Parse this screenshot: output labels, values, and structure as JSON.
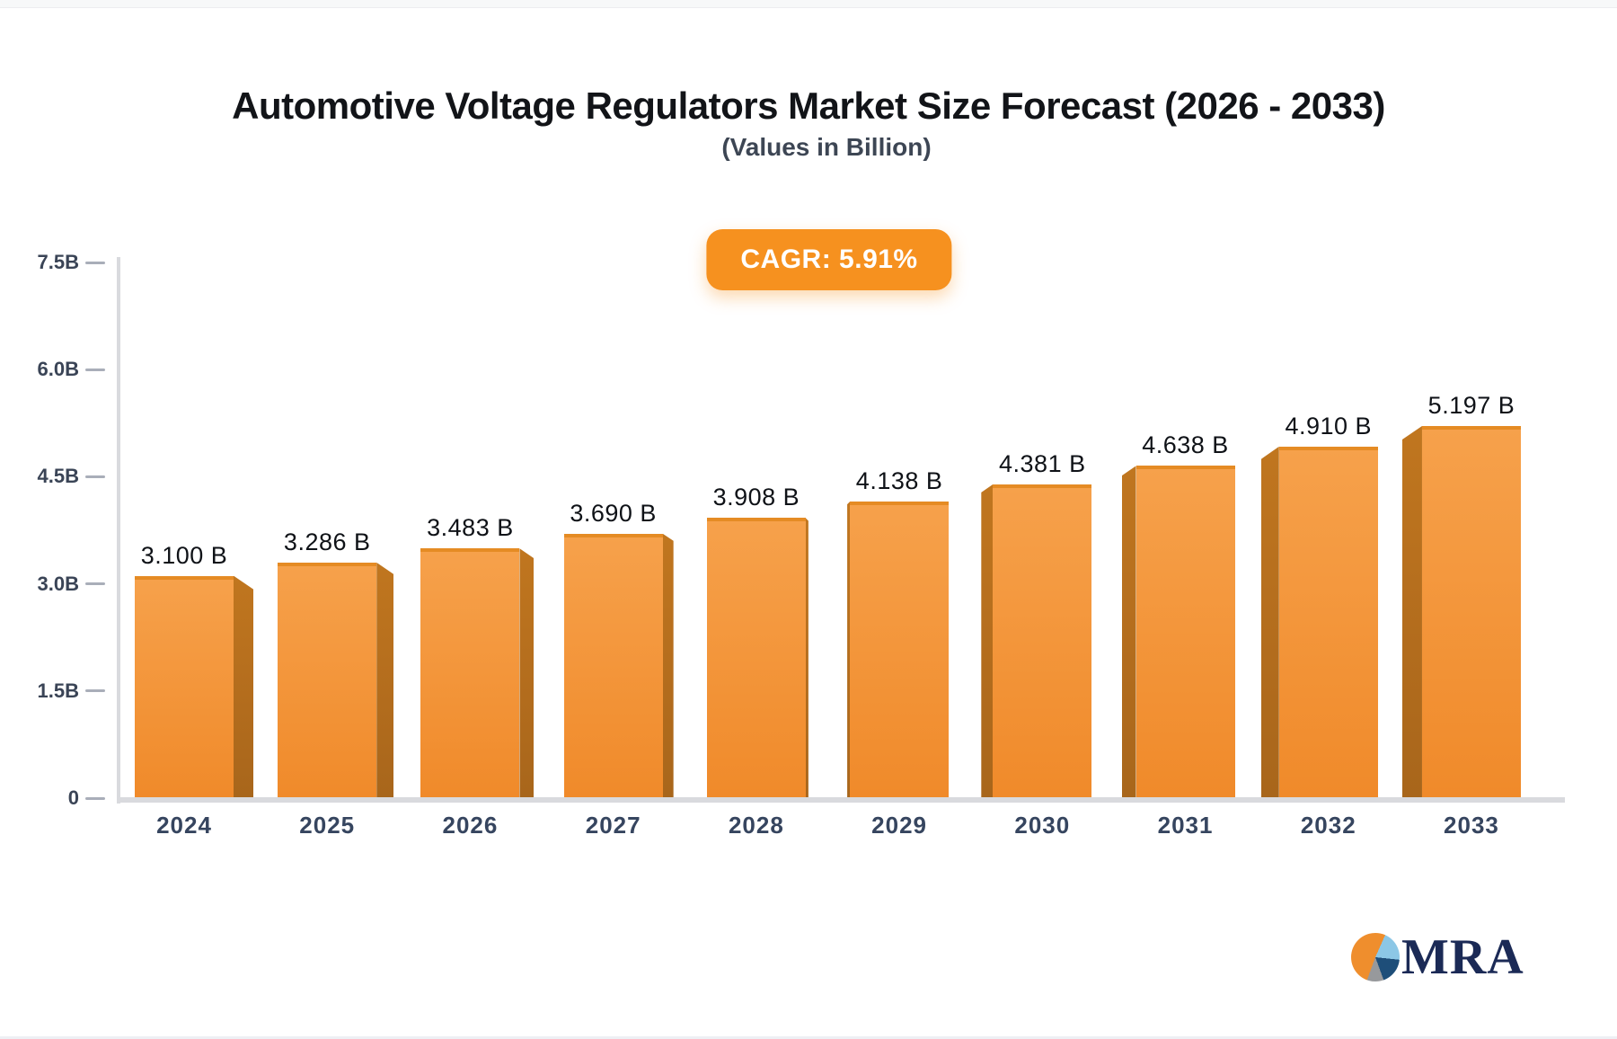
{
  "header": {
    "title": "Automotive Voltage Regulators Market Size Forecast (2026 - 2033)",
    "subtitle": "(Values in Billion)",
    "cagr_label": "CAGR: 5.91%",
    "cagr_badge_color": "#f6911f"
  },
  "logo": {
    "text": "MRA"
  },
  "chart_data": {
    "type": "bar",
    "title": "Automotive Voltage Regulators Market Size Forecast (2026 - 2033)",
    "subtitle": "(Values in Billion)",
    "annotation": "CAGR: 5.91%",
    "categories": [
      "2024",
      "2025",
      "2026",
      "2027",
      "2028",
      "2029",
      "2030",
      "2031",
      "2032",
      "2033"
    ],
    "values": [
      3.1,
      3.286,
      3.483,
      3.69,
      3.908,
      4.138,
      4.381,
      4.638,
      4.91,
      5.197
    ],
    "value_labels": [
      "3.100 B",
      "3.286 B",
      "3.483 B",
      "3.690 B",
      "3.908 B",
      "4.138 B",
      "4.381 B",
      "4.638 B",
      "4.910 B",
      "5.197 B"
    ],
    "xlabel": "",
    "ylabel": "",
    "ylim": [
      0,
      7.5
    ],
    "yticks": [
      0,
      1.5,
      3.0,
      4.5,
      6.0,
      7.5
    ],
    "ytick_labels": [
      "0",
      "1.5B",
      "3.0B",
      "4.5B",
      "6.0B",
      "7.5B"
    ],
    "grid": false,
    "legend_position": "none",
    "bar_face_color_top": "#f6a14b",
    "bar_face_color_bottom": "#f08a2a",
    "bar_side_color": "#b26c1d",
    "bar_top_edge_color": "#e58b24"
  }
}
